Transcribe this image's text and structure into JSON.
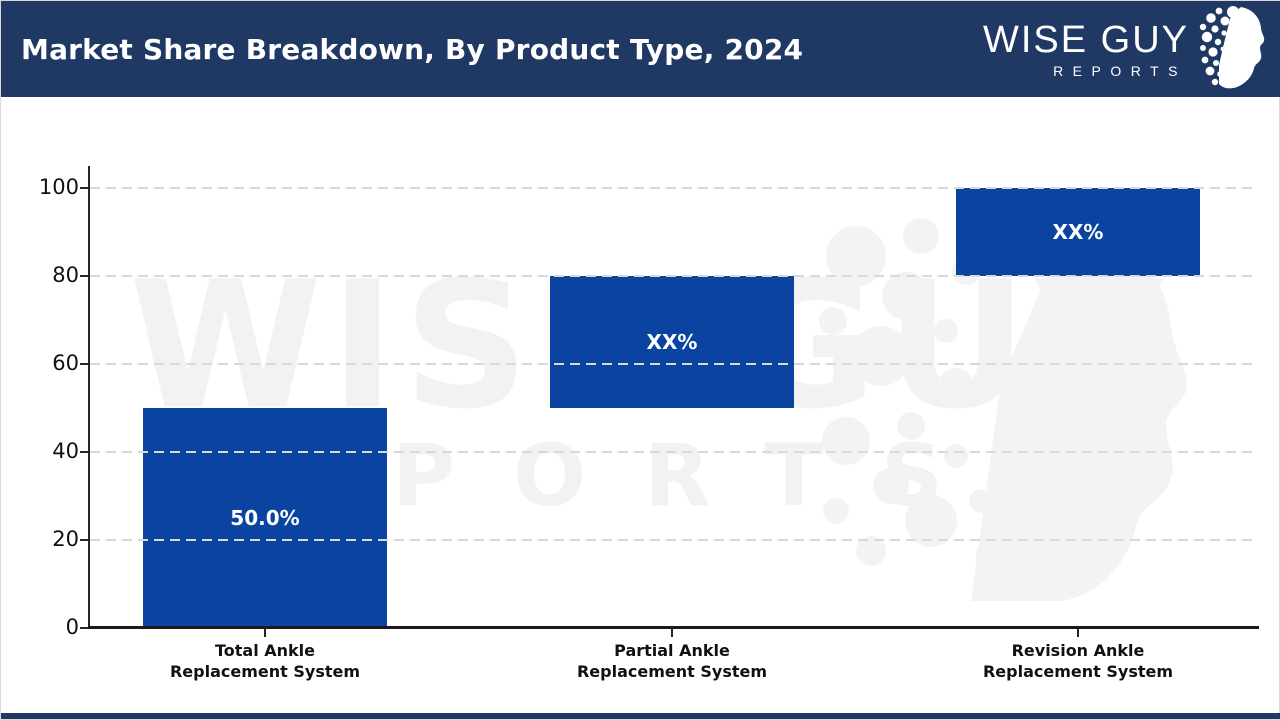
{
  "header": {
    "title": "Market Share Breakdown, By Product Type, 2024",
    "logo": {
      "brand_top": "WISE GUY",
      "brand_bottom": "REPORTS"
    }
  },
  "watermark": {
    "text_large": "WISE GUY",
    "text_small": "REPORTS"
  },
  "chart_data": {
    "type": "bar",
    "subtype": "floating-segment stacked breakdown (waterfall-style)",
    "title": "Market Share Breakdown, By Product Type, 2024",
    "categories": [
      "Total Ankle Replacement System",
      "Partial Ankle Replacement System",
      "Revision Ankle Replacement System"
    ],
    "category_lines": [
      [
        "Total Ankle",
        "Replacement System"
      ],
      [
        "Partial Ankle",
        "Replacement System"
      ],
      [
        "Revision Ankle",
        "Replacement System"
      ]
    ],
    "segments": [
      {
        "category": "Total Ankle Replacement System",
        "start": 0,
        "end": 50,
        "label": "50.0%"
      },
      {
        "category": "Partial Ankle Replacement System",
        "start": 50,
        "end": 80,
        "label": "XX%"
      },
      {
        "category": "Revision Ankle Replacement System",
        "start": 80,
        "end": 100,
        "label": "XX%"
      }
    ],
    "yticks": [
      0,
      20,
      40,
      60,
      80,
      100
    ],
    "ylim": [
      0,
      105
    ],
    "xlabel": "",
    "ylabel": "",
    "grid": "dashed horizontal, drawn over bars",
    "legend": "none",
    "bar_color": "#0a44a0"
  },
  "colors": {
    "header_bg": "#1f3864",
    "bar": "#0a44a0",
    "bar_label_text": "#ffffff",
    "gridline": "#d9d9d9",
    "axis": "#262626",
    "tick_text": "#111111",
    "watermark": "#f2f2f5",
    "page_bg": "#ffffff"
  }
}
